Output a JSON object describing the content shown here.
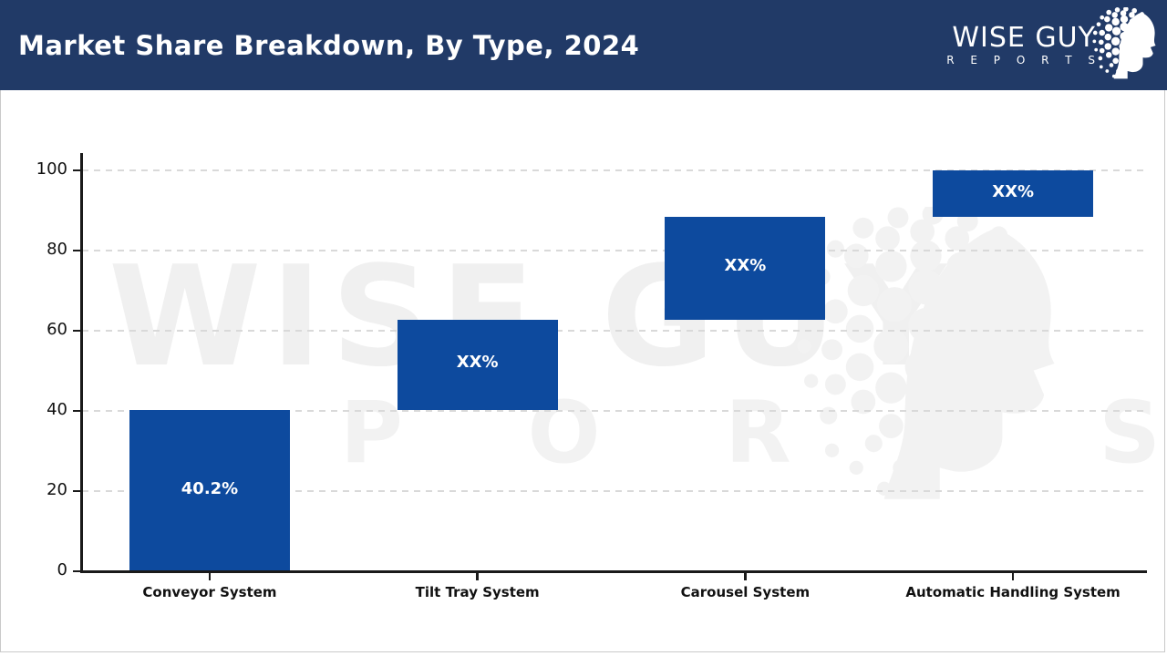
{
  "header": {
    "title": "Market Share Breakdown, By Type, 2024",
    "logo": {
      "wordmark": "WISE GUY",
      "subtext": "R E P O R T S"
    }
  },
  "watermark": {
    "line1": "WISE GUY",
    "line2": "P O R T S"
  },
  "chart_data": {
    "type": "bar",
    "variant": "waterfall",
    "title": "Market Share Breakdown, By Type, 2024",
    "categories": [
      "Conveyor System",
      "Tilt Tray System",
      "Carousel System",
      "Automatic Handling System"
    ],
    "segments": [
      {
        "category": "Conveyor System",
        "start": 0,
        "end": 40.2,
        "label": "40.2%"
      },
      {
        "category": "Tilt Tray System",
        "start": 40.2,
        "end": 62.8,
        "label": "XX%"
      },
      {
        "category": "Carousel System",
        "start": 62.8,
        "end": 88.4,
        "label": "XX%"
      },
      {
        "category": "Automatic Handling System",
        "start": 88.4,
        "end": 100,
        "label": "XX%"
      }
    ],
    "yticks": [
      0,
      20,
      40,
      60,
      80,
      100
    ],
    "ylim": [
      0,
      104
    ],
    "xlabel": "",
    "ylabel": "",
    "grid": "horizontal dashed",
    "legend": "none",
    "bar_color": "#0d4a9e",
    "bar_label_color": "#ffffff"
  },
  "colors": {
    "header_bg": "#213a67",
    "bar": "#0d4a9e",
    "axis": "#1a1a1a",
    "grid": "#d9d9d9",
    "watermark": "#f0f0f0",
    "frame_border": "#c9c9c9"
  }
}
